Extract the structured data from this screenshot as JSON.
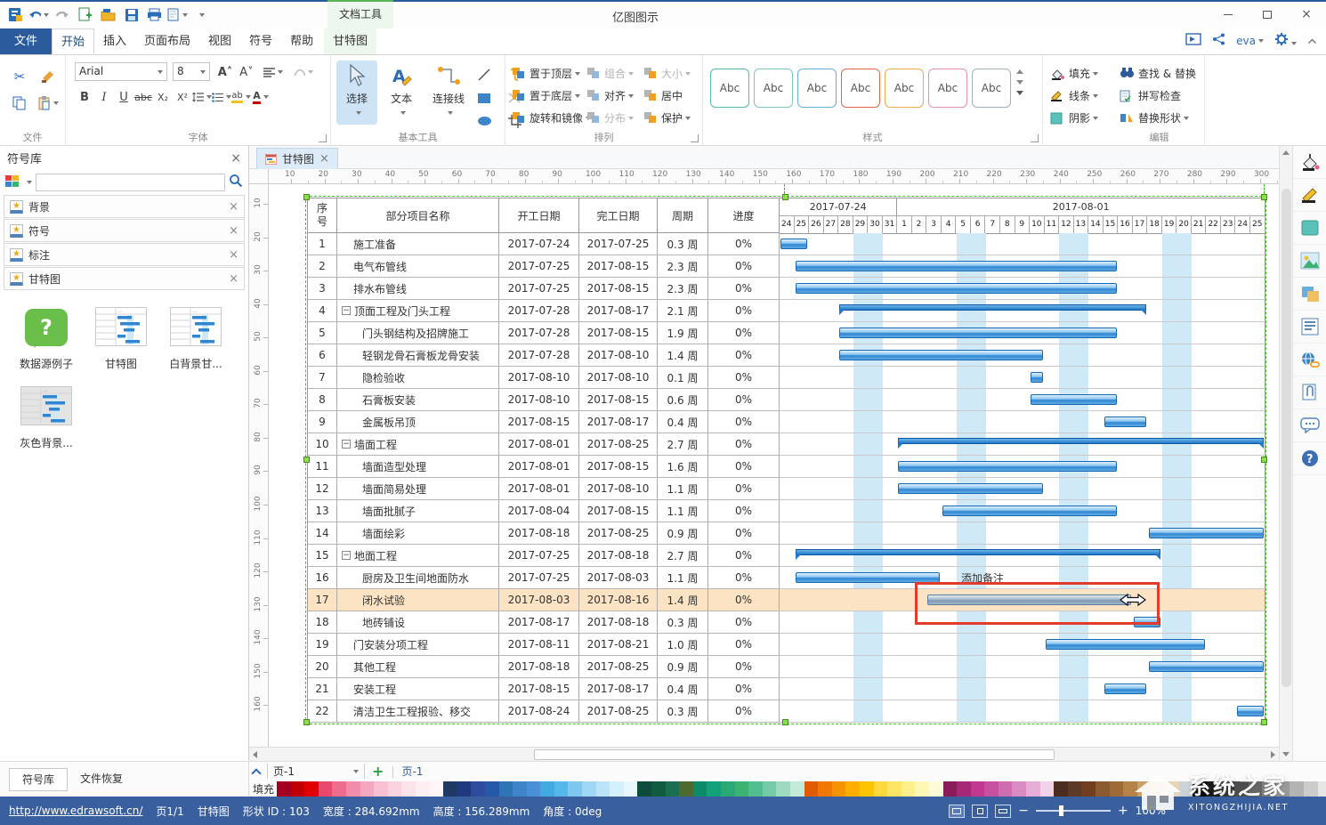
{
  "window": {
    "title": "亿图图示",
    "user": "eva"
  },
  "ribbon": {
    "file_tab": "文件",
    "tabs": [
      "开始",
      "插入",
      "页面布局",
      "视图",
      "符号",
      "帮助"
    ],
    "active_tab": "开始",
    "contextual_label": "文档工具",
    "contextual_tab": "甘特图",
    "group_labels": {
      "file": "文件",
      "font": "字体",
      "basic": "基本工具",
      "arrange": "排列",
      "style": "样式",
      "edit": "编辑"
    },
    "font": {
      "name": "Arial",
      "size": "8",
      "buttons": [
        "B",
        "I",
        "U",
        "abc",
        "X₂",
        "X²"
      ]
    },
    "basic_tools": [
      "选择",
      "文本",
      "连接线"
    ],
    "arrange_cols": [
      [
        {
          "t": "置于顶层",
          "dd": 1
        },
        {
          "t": "置于底层",
          "dd": 1
        },
        {
          "t": "旋转和镜像",
          "dd": 1
        }
      ],
      [
        {
          "t": "组合",
          "dd": 1,
          "dis": 1
        },
        {
          "t": "对齐",
          "dd": 1
        },
        {
          "t": "分布",
          "dd": 1,
          "dis": 1
        }
      ],
      [
        {
          "t": "大小",
          "dd": 1,
          "dis": 1
        },
        {
          "t": "居中"
        },
        {
          "t": "保护",
          "dd": 1
        }
      ]
    ],
    "style_presets": [
      {
        "label": "Abc",
        "border": "#56b8b0"
      },
      {
        "label": "Abc",
        "border": "#7fc4bd"
      },
      {
        "label": "Abc",
        "border": "#6aaede"
      },
      {
        "label": "Abc",
        "border": "#e2654a"
      },
      {
        "label": "Abc",
        "border": "#eda94e"
      },
      {
        "label": "Abc",
        "border": "#e391ad"
      },
      {
        "label": "Abc",
        "border": "#9fb0bc"
      }
    ],
    "fill_tools": [
      "填充",
      "线条",
      "阴影"
    ],
    "edit_items": [
      "查找 & 替换",
      "拼写检查",
      "替换形状"
    ]
  },
  "sidebar": {
    "title": "符号库",
    "sections": [
      "背景",
      "符号",
      "标注",
      "甘特图"
    ],
    "gallery": [
      {
        "label": "数据源例子",
        "type": "help",
        "glyph": "?"
      },
      {
        "label": "甘特图",
        "type": "thumb"
      },
      {
        "label": "白背景甘...",
        "type": "thumb"
      },
      {
        "label": "灰色背景...",
        "type": "thumb-gray"
      }
    ],
    "bottom_tabs": [
      "符号库",
      "文件恢复"
    ]
  },
  "workspace": {
    "doc_tab": "甘特图",
    "ruler_h": {
      "from": 10,
      "to": 300,
      "step": 10
    },
    "ruler_v": {
      "from": 10,
      "to": 160,
      "step": 10
    }
  },
  "gantt": {
    "columns": [
      "序号",
      "部分项目名称",
      "开工日期",
      "完工日期",
      "周期",
      "进度"
    ],
    "timeline": {
      "months": [
        {
          "label": "2017-07-24",
          "span": 8
        },
        {
          "label": "2017-08-01",
          "span": 25
        }
      ],
      "days": [
        "24",
        "25",
        "26",
        "27",
        "28",
        "29",
        "30",
        "31",
        "1",
        "2",
        "3",
        "4",
        "5",
        "6",
        "7",
        "8",
        "9",
        "10",
        "11",
        "12",
        "13",
        "14",
        "15",
        "16",
        "17",
        "18",
        "19",
        "20",
        "21",
        "22",
        "23",
        "24",
        "25"
      ],
      "weekend_pairs": [
        [
          5,
          6
        ],
        [
          12,
          13
        ],
        [
          19,
          20
        ],
        [
          26,
          27
        ]
      ]
    },
    "note_label": "添加备注",
    "tasks": [
      {
        "no": "1",
        "name": "施工准备",
        "start": "2017-07-24",
        "end": "2017-07-25",
        "duration": "0.3 周",
        "progress": "0%",
        "level": 1
      },
      {
        "no": "2",
        "name": "电气布管线",
        "start": "2017-07-25",
        "end": "2017-08-15",
        "duration": "2.3 周",
        "progress": "0%",
        "level": 1
      },
      {
        "no": "3",
        "name": "排水布管线",
        "start": "2017-07-25",
        "end": "2017-08-15",
        "duration": "2.3 周",
        "progress": "0%",
        "level": 1
      },
      {
        "no": "4",
        "name": "顶面工程及门头工程",
        "start": "2017-07-28",
        "end": "2017-08-17",
        "duration": "2.1 周",
        "progress": "0%",
        "level": 0,
        "summary": true
      },
      {
        "no": "5",
        "name": "门头钢结构及招牌施工",
        "start": "2017-07-28",
        "end": "2017-08-15",
        "duration": "1.9 周",
        "progress": "0%",
        "level": 2
      },
      {
        "no": "6",
        "name": "轻钢龙骨石膏板龙骨安装",
        "start": "2017-07-28",
        "end": "2017-08-10",
        "duration": "1.4 周",
        "progress": "0%",
        "level": 2
      },
      {
        "no": "7",
        "name": "隐检验收",
        "start": "2017-08-10",
        "end": "2017-08-10",
        "duration": "0.1 周",
        "progress": "0%",
        "level": 2
      },
      {
        "no": "8",
        "name": "石膏板安装",
        "start": "2017-08-10",
        "end": "2017-08-15",
        "duration": "0.6 周",
        "progress": "0%",
        "level": 2
      },
      {
        "no": "9",
        "name": "金属板吊顶",
        "start": "2017-08-15",
        "end": "2017-08-17",
        "duration": "0.4 周",
        "progress": "0%",
        "level": 2
      },
      {
        "no": "10",
        "name": "墙面工程",
        "start": "2017-08-01",
        "end": "2017-08-25",
        "duration": "2.7 周",
        "progress": "0%",
        "level": 0,
        "summary": true
      },
      {
        "no": "11",
        "name": "墙面造型处理",
        "start": "2017-08-01",
        "end": "2017-08-15",
        "duration": "1.6 周",
        "progress": "0%",
        "level": 2
      },
      {
        "no": "12",
        "name": "墙面简易处理",
        "start": "2017-08-01",
        "end": "2017-08-10",
        "duration": "1.1 周",
        "progress": "0%",
        "level": 2
      },
      {
        "no": "13",
        "name": "墙面批腻子",
        "start": "2017-08-04",
        "end": "2017-08-15",
        "duration": "1.1 周",
        "progress": "0%",
        "level": 2
      },
      {
        "no": "14",
        "name": "墙面绘彩",
        "start": "2017-08-18",
        "end": "2017-08-25",
        "duration": "0.9 周",
        "progress": "0%",
        "level": 2
      },
      {
        "no": "15",
        "name": "地面工程",
        "start": "2017-07-25",
        "end": "2017-08-18",
        "duration": "2.7 周",
        "progress": "0%",
        "level": 0,
        "summary": true
      },
      {
        "no": "16",
        "name": "厨房及卫生间地面防水",
        "start": "2017-07-25",
        "end": "2017-08-03",
        "duration": "1.1 周",
        "progress": "0%",
        "level": 2,
        "note": "添加备注"
      },
      {
        "no": "17",
        "name": "闭水试验",
        "start": "2017-08-03",
        "end": "2017-08-16",
        "duration": "1.4 周",
        "progress": "0%",
        "level": 2,
        "highlight": true,
        "dragging": true
      },
      {
        "no": "18",
        "name": "地砖铺设",
        "start": "2017-08-17",
        "end": "2017-08-18",
        "duration": "0.3 周",
        "progress": "0%",
        "level": 2
      },
      {
        "no": "19",
        "name": "门安装分项工程",
        "start": "2017-08-11",
        "end": "2017-08-21",
        "duration": "1.0 周",
        "progress": "0%",
        "level": 1
      },
      {
        "no": "20",
        "name": "其他工程",
        "start": "2017-08-18",
        "end": "2017-08-25",
        "duration": "0.9 周",
        "progress": "0%",
        "level": 1
      },
      {
        "no": "21",
        "name": "安装工程",
        "start": "2017-08-15",
        "end": "2017-08-17",
        "duration": "0.4 周",
        "progress": "0%",
        "level": 1
      },
      {
        "no": "22",
        "name": "清洁卫生工程报验、移交",
        "start": "2017-08-24",
        "end": "2017-08-25",
        "duration": "0.3 周",
        "progress": "0%",
        "level": 1
      }
    ],
    "colors": {
      "bar_fill": "#2f86d3",
      "weekend_band": "#cfe9f7",
      "highlight_row": "#fbe3c4",
      "annotation_red": "#e23b2e",
      "selection_green": "#3ec321"
    }
  },
  "bottom": {
    "page_dropdown": "页-1",
    "page_tab": "页-1",
    "fill_label": "填充",
    "palette": [
      "#a50021",
      "#c00000",
      "#e00000",
      "#e8486c",
      "#ee6d8e",
      "#f28cab",
      "#f6a7c0",
      "#f9bfd2",
      "#fbd3e0",
      "#fce3ea",
      "#fdeef3",
      "#fef6f9",
      "#1f3864",
      "#203a80",
      "#2e4b9e",
      "#2458a8",
      "#2e75b6",
      "#3d85c8",
      "#4a90d9",
      "#41aae1",
      "#55b8ea",
      "#7cc8ef",
      "#9fd8f5",
      "#bce4f9",
      "#d5effc",
      "#e8f6fd",
      "#0d4b3c",
      "#115c40",
      "#1b6e52",
      "#4d6b2f",
      "#0d8a6a",
      "#12a17b",
      "#2aa876",
      "#3cb371",
      "#52bd8f",
      "#74cba8",
      "#9cdbc1",
      "#c3ebd9",
      "#e05a00",
      "#f07800",
      "#f59300",
      "#ffae00",
      "#ffc400",
      "#ffd83d",
      "#ffe566",
      "#fff08c",
      "#fff7b3",
      "#fffbd9",
      "#8a1c5c",
      "#a82878",
      "#c03890",
      "#c850a0",
      "#d06cb0",
      "#da8cc2",
      "#e6aed6",
      "#f2d2e8",
      "#4a2c20",
      "#5d3a28",
      "#713f20",
      "#8a5a30",
      "#a06a38",
      "#b58248",
      "#c9a06a",
      "#ddbf94",
      "#e8d4b8",
      "#cdd2d6",
      "#000000",
      "#1a1a1a",
      "#333333",
      "#4d4d4d",
      "#666666",
      "#808080",
      "#999999",
      "#b3b3b3",
      "#cccccc",
      "#e6e6e6",
      "#ffffff",
      "#f26522",
      "#e8420c"
    ]
  },
  "status": {
    "link": "http://www.edrawsoft.cn/",
    "page": "页1/1",
    "doc": "甘特图",
    "shape": "形状 ID : 103",
    "width": "宽度 : 284.692mm",
    "height": "高度 : 156.289mm",
    "angle": "角度 : 0deg",
    "zoom": "100%"
  },
  "watermark": {
    "title": "系统之家",
    "domain": "XITONGZHIJIA.NET"
  }
}
